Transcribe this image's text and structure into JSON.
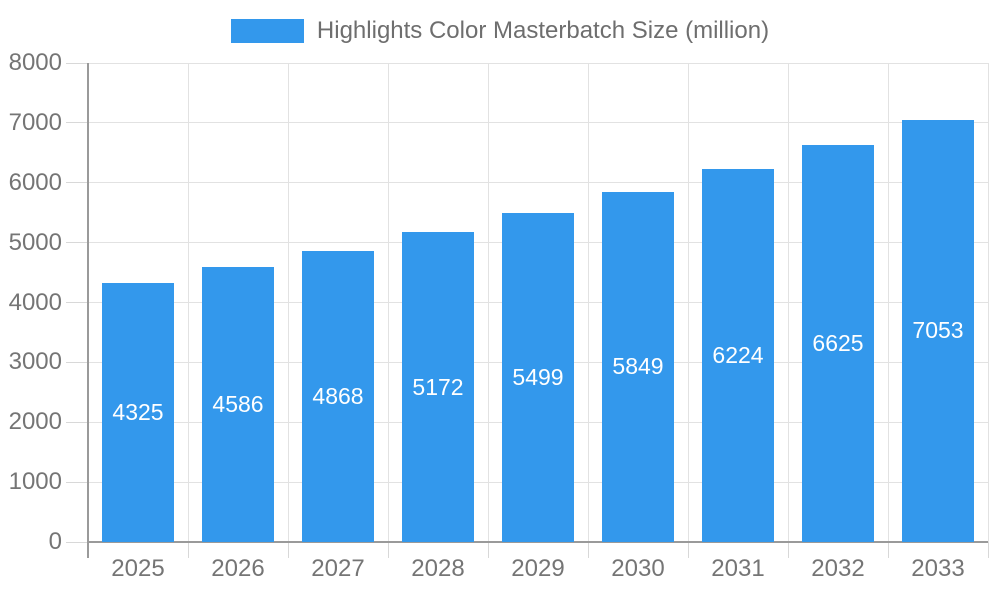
{
  "chart_data": {
    "type": "bar",
    "title": "Highlights Color Masterbatch Size (million)",
    "categories": [
      "2025",
      "2026",
      "2027",
      "2028",
      "2029",
      "2030",
      "2031",
      "2032",
      "2033"
    ],
    "series": [
      {
        "name": "Highlights Color Masterbatch Size (million)",
        "values": [
          4325,
          4586,
          4868,
          5172,
          5499,
          5849,
          6224,
          6625,
          7053
        ]
      }
    ],
    "xlabel": "",
    "ylabel": "",
    "ylim": [
      0,
      8000
    ],
    "yticks": [
      0,
      1000,
      2000,
      3000,
      4000,
      5000,
      6000,
      7000,
      8000
    ],
    "grid": "horizontal and vertical light gray gridlines",
    "legend_position": "top-center",
    "value_labels": "white numbers centered inside each bar"
  },
  "legend": {
    "label": "Highlights Color Masterbatch Size (million)"
  },
  "colors": {
    "bar": "#3398EC",
    "axis_line": "#9a9a9a",
    "gridline": "#e2e2e2",
    "tick": "#d8d8d8",
    "axis_text": "#757575",
    "legend_text": "#6e6e6e",
    "value_text": "#ffffff",
    "background": "#ffffff"
  }
}
